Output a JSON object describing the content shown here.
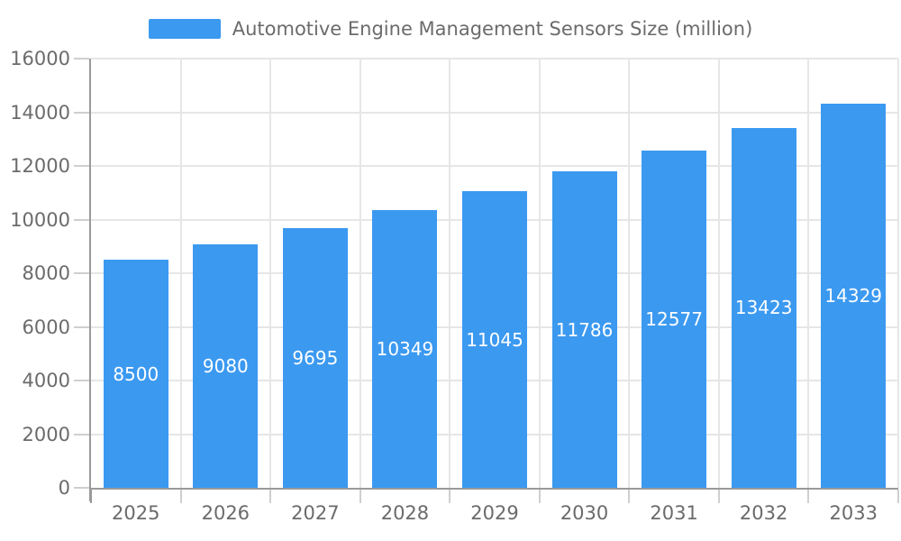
{
  "legend": {
    "label": "Automotive Engine Management Sensors Size (million)"
  },
  "chart_data": {
    "type": "bar",
    "title": "Automotive Engine Management Sensors Size (million)",
    "series_name": "Automotive Engine Management Sensors Size (million)",
    "categories": [
      "2025",
      "2026",
      "2027",
      "2028",
      "2029",
      "2030",
      "2031",
      "2032",
      "2033"
    ],
    "values": [
      8500,
      9080,
      9695,
      10349,
      11045,
      11786,
      12577,
      13423,
      14329
    ],
    "xlabel": "",
    "ylabel": "",
    "ylim": [
      0,
      16000
    ],
    "yticks": [
      0,
      2000,
      4000,
      6000,
      8000,
      10000,
      12000,
      14000,
      16000
    ],
    "grid": true,
    "legend_position": "top-center",
    "bar_label_position": "inside-center",
    "colors": {
      "bar": "#3B99F0",
      "bar_label": "#FFFFFF",
      "axis": "#9A9A9A",
      "grid": "#E6E6E6",
      "tick": "#CFCFCF",
      "text": "#6B6B6B",
      "background": "#FFFFFF"
    }
  }
}
